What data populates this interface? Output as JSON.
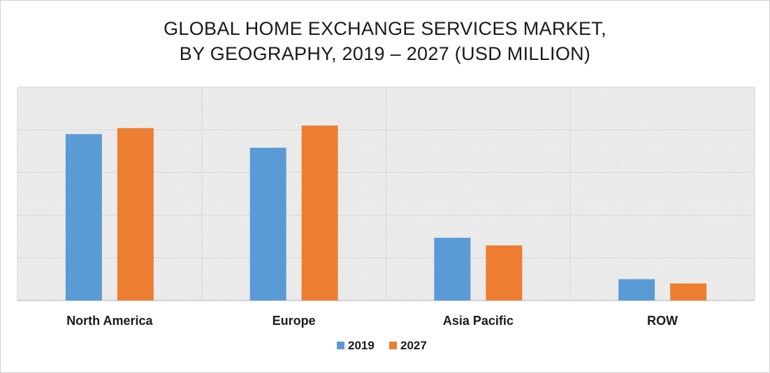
{
  "title": {
    "line1": "GLOBAL HOME EXCHANGE SERVICES MARKET,",
    "line2": "BY GEOGRAPHY, 2019 – 2027 (USD MILLION)"
  },
  "chart_data": {
    "type": "bar",
    "title": "GLOBAL HOME EXCHANGE SERVICES MARKET, BY GEOGRAPHY, 2019 – 2027 (USD MILLION)",
    "categories": [
      "North America",
      "Europe",
      "Asia Pacific",
      "ROW"
    ],
    "series": [
      {
        "name": "2019",
        "color": "#5b9bd5",
        "values": [
          3.9,
          3.58,
          1.47,
          0.5
        ]
      },
      {
        "name": "2027",
        "color": "#ed7d31",
        "values": [
          4.04,
          4.1,
          1.29,
          0.4
        ]
      }
    ],
    "ylim": [
      0,
      5
    ],
    "grid": true,
    "axis_tick_labels_shown": false,
    "legend": "bottom-center",
    "plot_background": "hatched-gray"
  }
}
